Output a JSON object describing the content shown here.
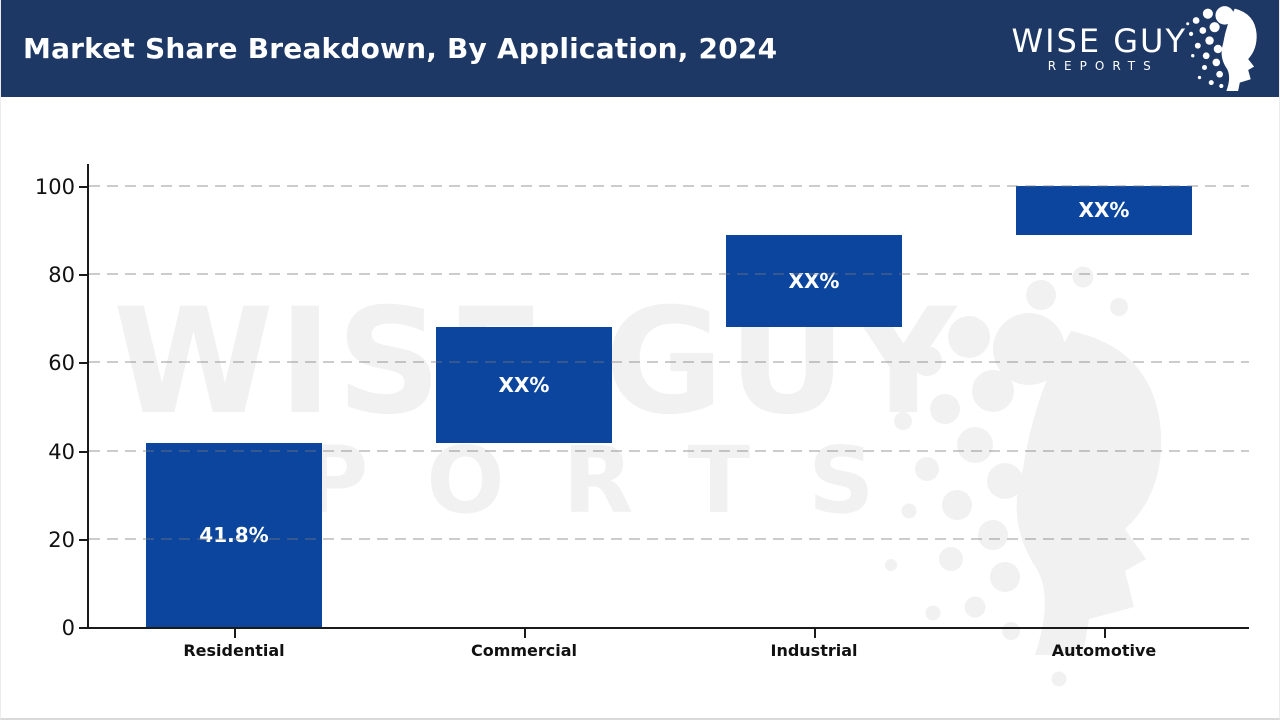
{
  "header": {
    "title": "Market Share Breakdown, By Application, 2024",
    "background": "#1e3866",
    "logo": {
      "wordmark": "WISE GUY",
      "subtitle": "REPORTS",
      "icon": "dotted-head-profile-icon"
    }
  },
  "watermark": {
    "line1": "WISE GUY",
    "line2": "PORTS",
    "icon": "dotted-head-profile-watermark"
  },
  "chart_data": {
    "type": "bar",
    "subtype": "waterfall",
    "title": "Market Share Breakdown, By Application, 2024",
    "categories": [
      "Residential",
      "Commercial",
      "Industrial",
      "Automotive"
    ],
    "bars": [
      {
        "category": "Residential",
        "start": 0,
        "end": 41.8,
        "label": "41.8%"
      },
      {
        "category": "Commercial",
        "start": 41.8,
        "end": 68,
        "label": "XX%"
      },
      {
        "category": "Industrial",
        "start": 68,
        "end": 89,
        "label": "XX%"
      },
      {
        "category": "Automotive",
        "start": 89,
        "end": 100,
        "label": "XX%"
      }
    ],
    "xlabel": "",
    "ylabel": "",
    "yticks": [
      0,
      20,
      40,
      60,
      80,
      100
    ],
    "ylim": [
      0,
      105
    ],
    "grid": {
      "horizontal": true,
      "style": "dashed",
      "color": "#d9d9d9",
      "above_bars": true
    },
    "legend": "none",
    "bar_color": "#0b459d",
    "bar_label_color": "#ffffff",
    "axis_color": "#1a1a1a"
  }
}
